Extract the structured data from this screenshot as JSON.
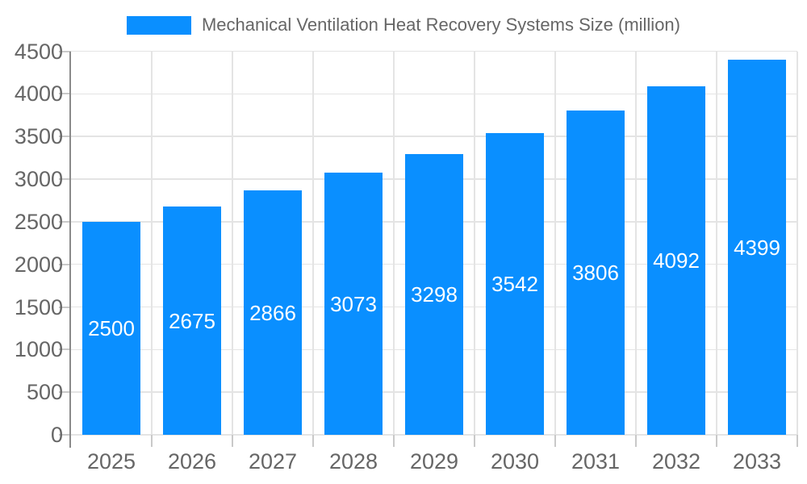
{
  "chart_data": {
    "type": "bar",
    "title": "Mechanical Ventilation Heat Recovery Systems Size (million)",
    "categories": [
      "2025",
      "2026",
      "2027",
      "2028",
      "2029",
      "2030",
      "2031",
      "2032",
      "2033"
    ],
    "values": [
      2500,
      2675,
      2866,
      3073,
      3298,
      3542,
      3806,
      4092,
      4399
    ],
    "xlabel": "",
    "ylabel": "",
    "ylim": [
      0,
      4500
    ],
    "yticks": [
      0,
      500,
      1000,
      1500,
      2000,
      2500,
      3000,
      3500,
      4000,
      4500
    ],
    "grid": true,
    "legend_position": "top",
    "bar_label_position": "middle",
    "colors": {
      "bar": "#0A8FFF",
      "bar_label": "#FFFFFF",
      "axis_label": "#666666",
      "grid_line": "#E4E4E4",
      "tick_line": "#C9C9C9",
      "axis_line": "#8A8A8A",
      "background": "#FFFFFF"
    }
  }
}
